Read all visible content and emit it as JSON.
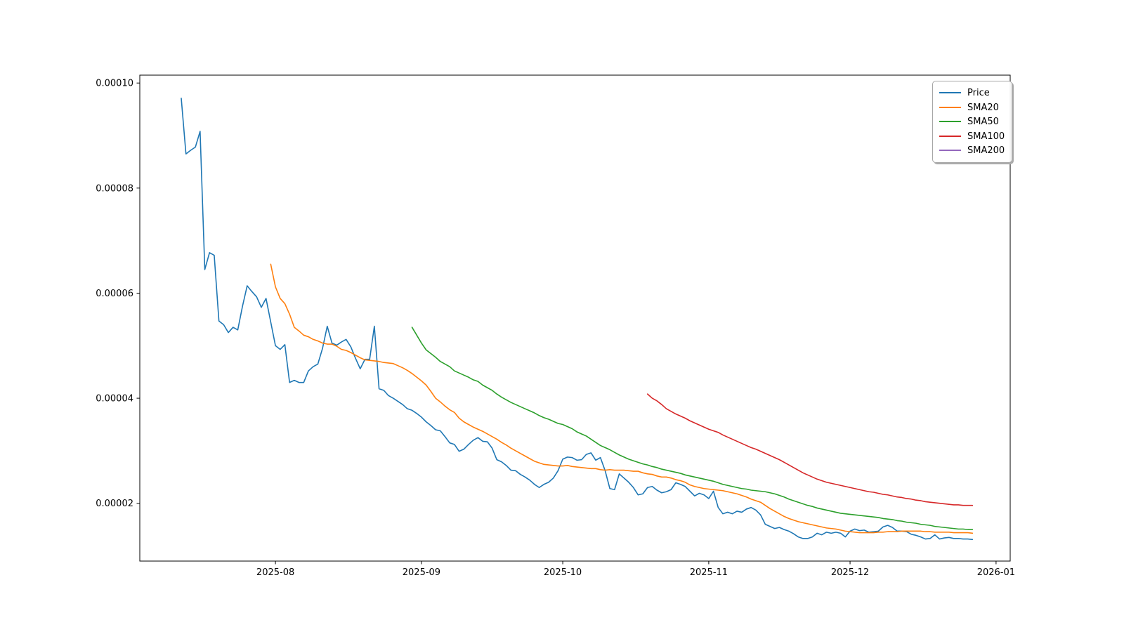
{
  "figure": {
    "background_color": "#ffffff",
    "frame_color": "#000000",
    "legend": {
      "position": "upper right",
      "entries": [
        {
          "label": "Price",
          "color": "#1f77b4"
        },
        {
          "label": "SMA20",
          "color": "#ff7f0e"
        },
        {
          "label": "SMA50",
          "color": "#2ca02c"
        },
        {
          "label": "SMA100",
          "color": "#d62728"
        },
        {
          "label": "SMA200",
          "color": "#9467bd"
        }
      ]
    }
  },
  "chart_data": {
    "type": "line",
    "title": "",
    "xlabel": "",
    "ylabel": "",
    "grid": false,
    "legend_position": "upper right",
    "unit_scale": 1e-05,
    "x_axis": {
      "start_date": "2025-07-12",
      "frequency": "daily",
      "tick_labels": [
        "2025-08",
        "2025-09",
        "2025-10",
        "2025-11",
        "2025-12",
        "2026-01"
      ],
      "tick_day_offsets": [
        20,
        51,
        81,
        112,
        142,
        173
      ],
      "xlim_day_offsets": [
        -8.8,
        176.0
      ]
    },
    "y_axis": {
      "tick_labels": [
        "0.00002",
        "0.00004",
        "0.00006",
        "0.00008",
        "0.00010"
      ],
      "tick_values": [
        2,
        4,
        6,
        8,
        10
      ],
      "ylim": [
        0.9,
        10.15
      ]
    },
    "series": [
      {
        "name": "Price",
        "color": "#1f77b4",
        "start_index": 0,
        "values": [
          9.71,
          8.65,
          8.72,
          8.78,
          9.08,
          6.45,
          6.77,
          6.72,
          5.47,
          5.4,
          5.25,
          5.35,
          5.3,
          5.75,
          6.14,
          6.03,
          5.93,
          5.73,
          5.9,
          5.45,
          5.0,
          4.93,
          5.02,
          4.3,
          4.34,
          4.3,
          4.3,
          4.52,
          4.6,
          4.65,
          4.95,
          5.37,
          5.05,
          5.01,
          5.07,
          5.12,
          4.98,
          4.76,
          4.56,
          4.74,
          4.74,
          5.37,
          4.18,
          4.15,
          4.05,
          4.0,
          3.94,
          3.88,
          3.8,
          3.77,
          3.71,
          3.64,
          3.55,
          3.48,
          3.4,
          3.38,
          3.27,
          3.15,
          3.12,
          2.99,
          3.03,
          3.12,
          3.2,
          3.25,
          3.18,
          3.17,
          3.05,
          2.83,
          2.79,
          2.72,
          2.63,
          2.62,
          2.55,
          2.5,
          2.44,
          2.36,
          2.3,
          2.36,
          2.4,
          2.48,
          2.62,
          2.84,
          2.88,
          2.87,
          2.82,
          2.83,
          2.93,
          2.96,
          2.82,
          2.87,
          2.62,
          2.28,
          2.26,
          2.56,
          2.48,
          2.4,
          2.3,
          2.16,
          2.18,
          2.3,
          2.32,
          2.25,
          2.2,
          2.22,
          2.26,
          2.39,
          2.36,
          2.32,
          2.23,
          2.14,
          2.19,
          2.16,
          2.09,
          2.23,
          1.92,
          1.8,
          1.83,
          1.8,
          1.85,
          1.83,
          1.89,
          1.92,
          1.87,
          1.78,
          1.6,
          1.56,
          1.52,
          1.54,
          1.5,
          1.47,
          1.42,
          1.36,
          1.33,
          1.33,
          1.36,
          1.43,
          1.4,
          1.45,
          1.43,
          1.45,
          1.43,
          1.36,
          1.47,
          1.51,
          1.48,
          1.49,
          1.45,
          1.46,
          1.47,
          1.55,
          1.58,
          1.54,
          1.47,
          1.47,
          1.46,
          1.41,
          1.39,
          1.36,
          1.32,
          1.33,
          1.4,
          1.32,
          1.34,
          1.35,
          1.33,
          1.33,
          1.32,
          1.32,
          1.31
        ]
      },
      {
        "name": "SMA20",
        "color": "#ff7f0e",
        "start_index": 19,
        "values": [
          6.55,
          6.12,
          5.9,
          5.8,
          5.6,
          5.35,
          5.28,
          5.2,
          5.17,
          5.12,
          5.09,
          5.05,
          5.03,
          5.03,
          4.99,
          4.93,
          4.91,
          4.87,
          4.82,
          4.77,
          4.73,
          4.72,
          4.71,
          4.7,
          4.68,
          4.67,
          4.66,
          4.62,
          4.58,
          4.53,
          4.47,
          4.4,
          4.33,
          4.25,
          4.13,
          4.0,
          3.93,
          3.85,
          3.78,
          3.73,
          3.62,
          3.55,
          3.5,
          3.45,
          3.41,
          3.37,
          3.32,
          3.27,
          3.22,
          3.16,
          3.11,
          3.05,
          3.0,
          2.95,
          2.9,
          2.85,
          2.8,
          2.77,
          2.74,
          2.73,
          2.72,
          2.71,
          2.71,
          2.72,
          2.7,
          2.69,
          2.68,
          2.67,
          2.66,
          2.66,
          2.64,
          2.63,
          2.64,
          2.63,
          2.63,
          2.63,
          2.62,
          2.61,
          2.61,
          2.58,
          2.56,
          2.55,
          2.52,
          2.5,
          2.5,
          2.48,
          2.45,
          2.43,
          2.4,
          2.35,
          2.32,
          2.3,
          2.28,
          2.27,
          2.26,
          2.25,
          2.24,
          2.22,
          2.2,
          2.18,
          2.15,
          2.12,
          2.08,
          2.05,
          2.02,
          1.96,
          1.9,
          1.85,
          1.8,
          1.75,
          1.71,
          1.68,
          1.65,
          1.63,
          1.61,
          1.59,
          1.57,
          1.55,
          1.53,
          1.52,
          1.51,
          1.49,
          1.47,
          1.46,
          1.45,
          1.44,
          1.44,
          1.44,
          1.44,
          1.45,
          1.45,
          1.46,
          1.46,
          1.46,
          1.47,
          1.47,
          1.47,
          1.47,
          1.47,
          1.46,
          1.46,
          1.45,
          1.45,
          1.45,
          1.45,
          1.44,
          1.44,
          1.44,
          1.44,
          1.43
        ]
      },
      {
        "name": "SMA50",
        "color": "#2ca02c",
        "start_index": 49,
        "values": [
          5.35,
          5.2,
          5.05,
          4.92,
          4.85,
          4.78,
          4.7,
          4.65,
          4.6,
          4.52,
          4.48,
          4.44,
          4.4,
          4.35,
          4.32,
          4.25,
          4.2,
          4.15,
          4.08,
          4.02,
          3.97,
          3.92,
          3.88,
          3.84,
          3.8,
          3.76,
          3.72,
          3.67,
          3.63,
          3.6,
          3.56,
          3.52,
          3.5,
          3.46,
          3.42,
          3.36,
          3.32,
          3.28,
          3.22,
          3.16,
          3.1,
          3.06,
          3.02,
          2.97,
          2.92,
          2.88,
          2.84,
          2.81,
          2.78,
          2.75,
          2.73,
          2.7,
          2.68,
          2.65,
          2.63,
          2.61,
          2.59,
          2.57,
          2.54,
          2.52,
          2.5,
          2.48,
          2.46,
          2.44,
          2.42,
          2.39,
          2.36,
          2.34,
          2.32,
          2.3,
          2.28,
          2.27,
          2.25,
          2.24,
          2.23,
          2.22,
          2.2,
          2.18,
          2.15,
          2.12,
          2.08,
          2.05,
          2.02,
          1.99,
          1.96,
          1.94,
          1.91,
          1.89,
          1.87,
          1.85,
          1.83,
          1.81,
          1.8,
          1.79,
          1.78,
          1.77,
          1.76,
          1.75,
          1.74,
          1.73,
          1.71,
          1.7,
          1.69,
          1.67,
          1.66,
          1.64,
          1.63,
          1.62,
          1.6,
          1.59,
          1.58,
          1.56,
          1.55,
          1.54,
          1.53,
          1.52,
          1.51,
          1.51,
          1.5,
          1.5
        ]
      },
      {
        "name": "SMA100",
        "color": "#d62728",
        "start_index": 99,
        "values": [
          4.08,
          4.0,
          3.95,
          3.88,
          3.8,
          3.75,
          3.7,
          3.66,
          3.62,
          3.57,
          3.53,
          3.49,
          3.45,
          3.41,
          3.38,
          3.35,
          3.3,
          3.26,
          3.22,
          3.18,
          3.14,
          3.1,
          3.06,
          3.03,
          2.99,
          2.95,
          2.91,
          2.87,
          2.83,
          2.78,
          2.73,
          2.68,
          2.63,
          2.58,
          2.54,
          2.5,
          2.46,
          2.43,
          2.4,
          2.38,
          2.36,
          2.34,
          2.32,
          2.3,
          2.28,
          2.26,
          2.24,
          2.22,
          2.21,
          2.19,
          2.17,
          2.16,
          2.14,
          2.12,
          2.11,
          2.09,
          2.08,
          2.06,
          2.05,
          2.03,
          2.02,
          2.01,
          2.0,
          1.99,
          1.98,
          1.97,
          1.97,
          1.96,
          1.96,
          1.96
        ]
      },
      {
        "name": "SMA200",
        "color": "#9467bd",
        "start_index": null,
        "values": []
      }
    ]
  }
}
